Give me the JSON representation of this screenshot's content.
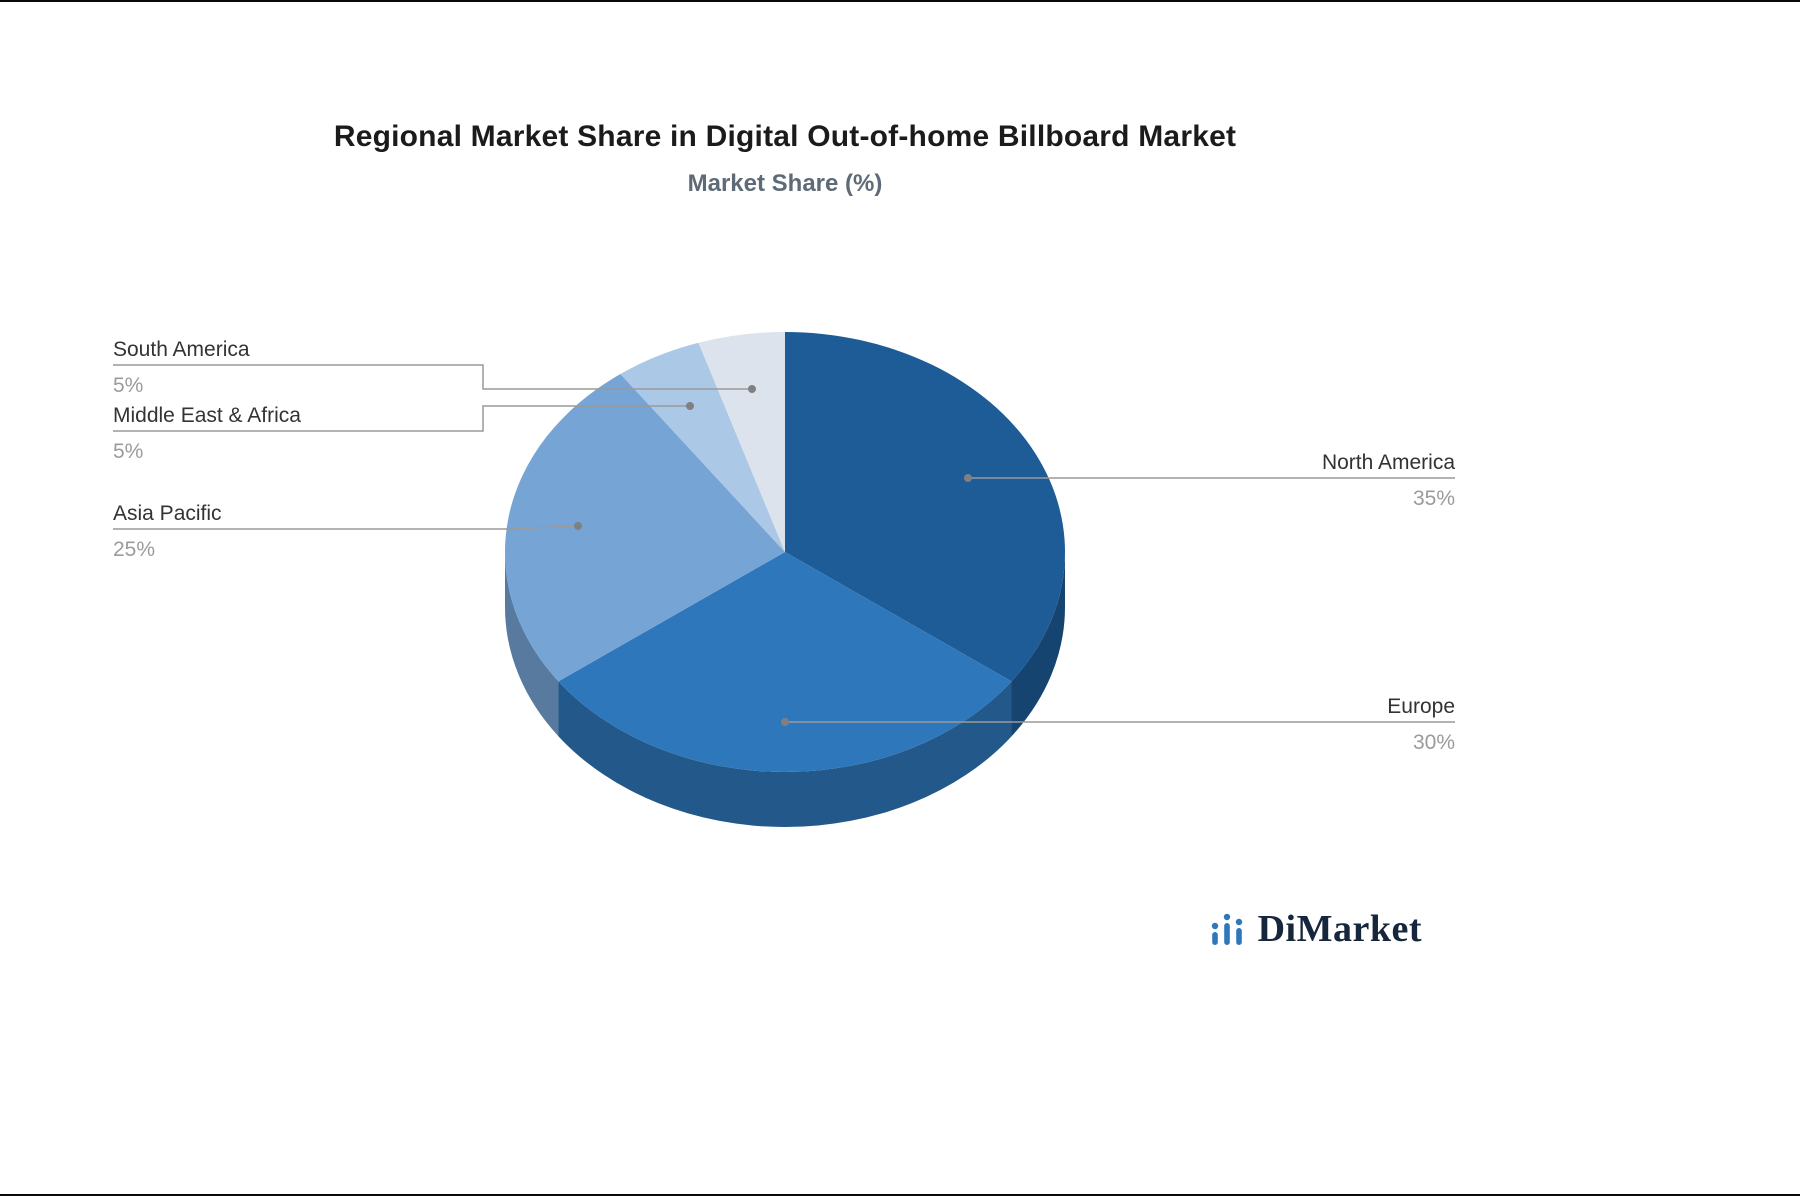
{
  "chart_data": {
    "type": "pie",
    "effect": "3d",
    "title": "Regional Market Share in Digital Out-of-home Billboard Market",
    "subtitle": "Market Share (%)",
    "unit": "%",
    "legend_position": "none",
    "series": [
      {
        "name": "North America",
        "value": 35,
        "display": "35%",
        "color": "#1e5c98"
      },
      {
        "name": "Europe",
        "value": 30,
        "display": "30%",
        "color": "#2e77bb"
      },
      {
        "name": "Asia Pacific",
        "value": 25,
        "display": "25%",
        "color": "#76a5d5"
      },
      {
        "name": "Middle East & Africa",
        "value": 5,
        "display": "5%",
        "color": "#abc8e6"
      },
      {
        "name": "South America",
        "value": 5,
        "display": "5%",
        "color": "#dde3ec"
      }
    ],
    "label_line_color": "#9a9a9a",
    "label_dot_color": "#808080",
    "label_name_color": "#333333",
    "label_value_color": "#9b9b9b"
  },
  "brand": {
    "name": "DiMarket",
    "text_color": "#16263d",
    "icon_color": "#2e77bb"
  }
}
